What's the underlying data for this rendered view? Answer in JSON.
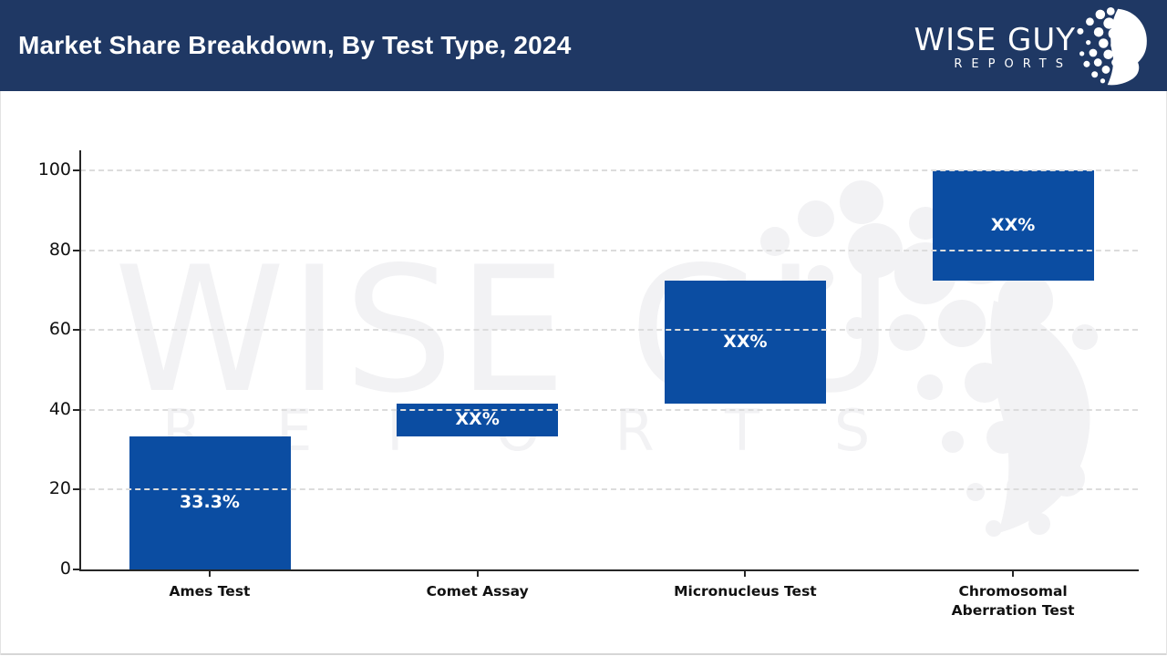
{
  "header": {
    "title": "Market Share Breakdown, By Test Type, 2024",
    "logo": {
      "line1": "WISE GUY",
      "line2": "REPORTS"
    }
  },
  "watermark": {
    "line1": "WISE GU",
    "line2": "REPORTS"
  },
  "colors": {
    "header_bg": "#1F3864",
    "bar": "#0B4DA2",
    "grid": "#DCDCDC",
    "axis": "#262626",
    "bar_label": "#FFFFFF",
    "watermark": "#F2F2F4"
  },
  "chart_data": {
    "type": "bar",
    "subtype": "waterfall",
    "title": "Market Share Breakdown, By Test Type, 2024",
    "categories": [
      "Ames Test",
      "Comet Assay",
      "Micronucleus Test",
      "Chromosomal Aberration Test"
    ],
    "segments": [
      {
        "category": "Ames Test",
        "start": 0,
        "end": 33.3,
        "label": "33.3%"
      },
      {
        "category": "Comet Assay",
        "start": 33.3,
        "end": 41.5,
        "label": "XX%"
      },
      {
        "category": "Micronucleus Test",
        "start": 41.5,
        "end": 72.3,
        "label": "XX%"
      },
      {
        "category": "Chromosomal Aberration Test",
        "start": 72.3,
        "end": 100,
        "label": "XX%"
      }
    ],
    "xlabel": "",
    "ylabel": "",
    "ylim": [
      0,
      100
    ],
    "yticks": [
      0,
      20,
      40,
      60,
      80,
      100
    ],
    "grid": "horizontal dashed, drawn over bars",
    "legend": "none"
  }
}
